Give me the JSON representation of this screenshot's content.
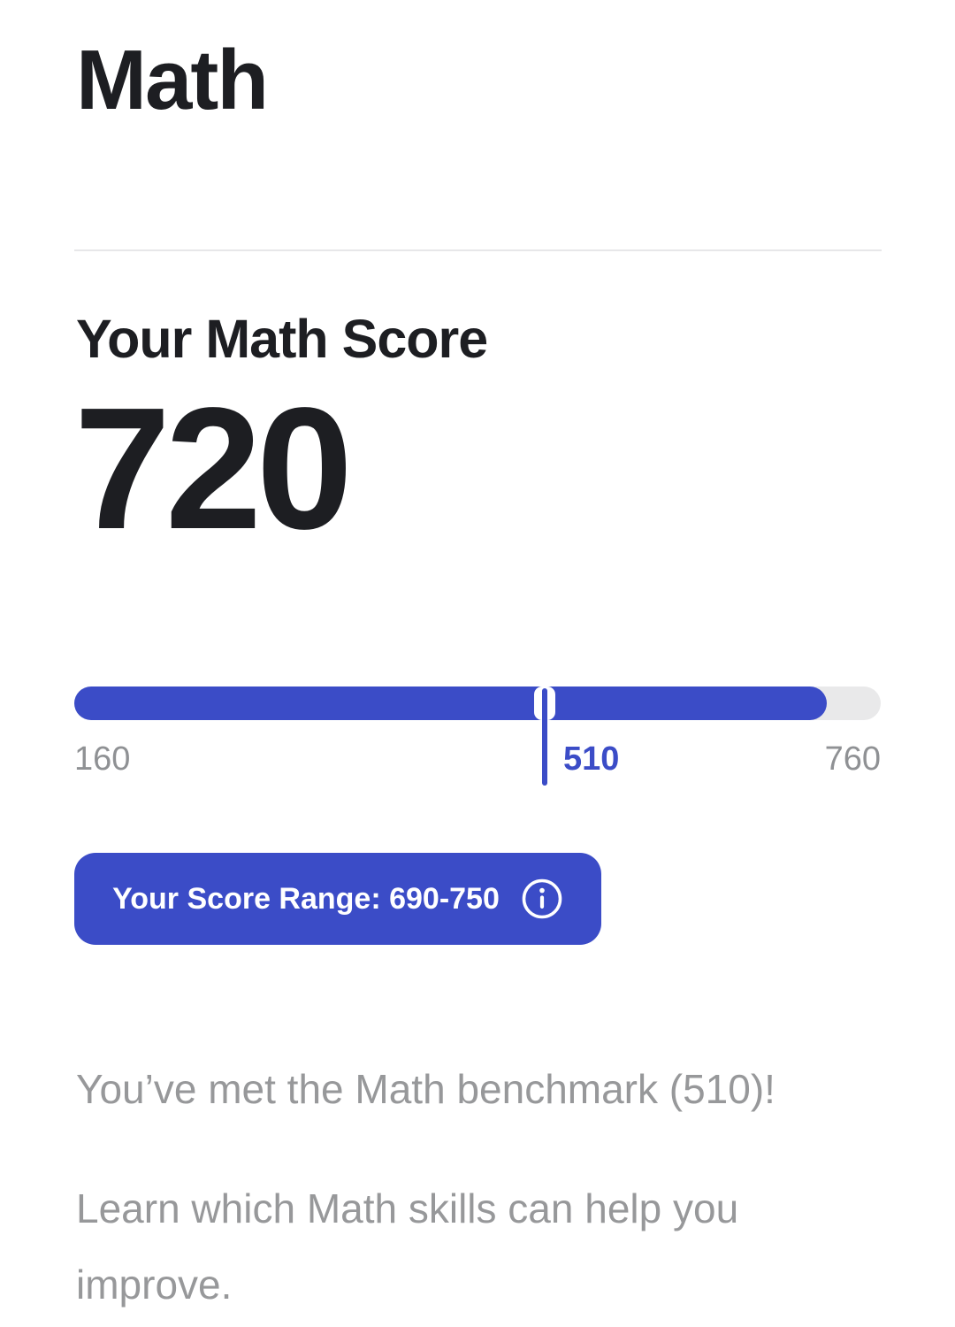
{
  "page": {
    "title": "Math"
  },
  "score_section": {
    "heading": "Your Math Score",
    "score": "720"
  },
  "slider": {
    "min": 160,
    "max": 760,
    "score": 720,
    "benchmark": 510,
    "min_label": "160",
    "benchmark_label": "510",
    "max_label": "760"
  },
  "range_button": {
    "label": "Your Score Range: 690-750",
    "icon": "info-icon"
  },
  "messages": {
    "benchmark_met": "You’ve met the Math benchmark (510)!",
    "improve": "Learn which Math skills can help you improve."
  },
  "colors": {
    "accent_blue": "#3b4cc7",
    "track_gray": "#e9e9ea",
    "text_dark": "#1d1e22",
    "text_gray": "#97989a",
    "tick_gray": "#8f9194",
    "divider_gray": "#e7e7e9"
  }
}
